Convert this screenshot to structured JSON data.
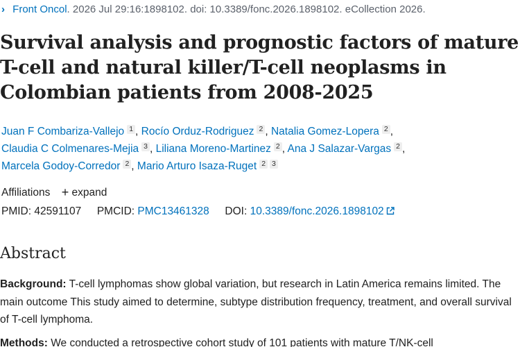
{
  "citation": {
    "journal": "Front Oncol",
    "details": ". 2026 Jul 29:16:1898102. doi: 10.3389/fonc.2026.1898102. eCollection 2026."
  },
  "title": "Survival analysis and prognostic factors of mature T-cell and natural killer/T-cell neoplasms in Colombian patients from 2008-2025",
  "authors": [
    {
      "name": "Juan F Combariza-Vallejo",
      "affils": [
        "1"
      ]
    },
    {
      "name": "Rocío Orduz-Rodriguez",
      "affils": [
        "2"
      ]
    },
    {
      "name": "Natalia Gomez-Lopera",
      "affils": [
        "2"
      ]
    },
    {
      "name": "Claudia C Colmenares-Mejia",
      "affils": [
        "3"
      ]
    },
    {
      "name": "Liliana Moreno-Martinez",
      "affils": [
        "2"
      ]
    },
    {
      "name": "Ana J Salazar-Vargas",
      "affils": [
        "2"
      ]
    },
    {
      "name": "Marcela Godoy-Corredor",
      "affils": [
        "2"
      ]
    },
    {
      "name": "Mario Arturo Isaza-Ruget",
      "affils": [
        "2",
        "3"
      ]
    }
  ],
  "affiliations": {
    "label": "Affiliations",
    "expand_label": "expand"
  },
  "identifiers": {
    "pmid_label": "PMID:",
    "pmid": "42591107",
    "pmcid_label": "PMCID:",
    "pmcid": "PMC13461328",
    "doi_label": "DOI:",
    "doi": "10.3389/fonc.2026.1898102"
  },
  "abstract": {
    "heading": "Abstract",
    "background_label": "Background:",
    "background_text": " T-cell lymphomas show global variation, but research in Latin America remains limited. The main outcome This study aimed to determine, subtype distribution frequency, treatment, and overall survival of T-cell lymphoma.",
    "methods_label": "Methods:",
    "methods_text": " We conducted a retrospective cohort study of 101 patients with mature T/NK-cell"
  },
  "colors": {
    "link": "#0071bc",
    "text": "#212121",
    "muted": "#5b616b"
  }
}
